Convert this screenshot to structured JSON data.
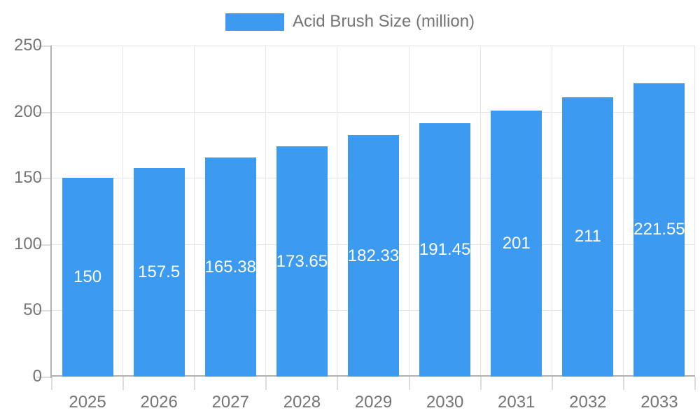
{
  "legend": {
    "label": "Acid Brush Size (million)"
  },
  "chart_data": {
    "type": "bar",
    "title": "",
    "categories": [
      "2025",
      "2026",
      "2027",
      "2028",
      "2029",
      "2030",
      "2031",
      "2032",
      "2033"
    ],
    "series": [
      {
        "name": "Acid Brush Size (million)",
        "values": [
          150,
          157.5,
          165.38,
          173.65,
          182.33,
          191.45,
          201,
          211,
          221.55
        ]
      }
    ],
    "value_labels": [
      "150",
      "157.5",
      "165.38",
      "173.65",
      "182.33",
      "191.45",
      "201",
      "211",
      "221.55"
    ],
    "xlabel": "",
    "ylabel": "",
    "ylim": [
      0,
      250
    ],
    "y_ticks": [
      0,
      50,
      100,
      150,
      200,
      250
    ],
    "grid": true,
    "legend_position": "top",
    "colors": {
      "bar": "#3C9AF0",
      "grid": "#e6e6e6",
      "axis": "#b1b1b1",
      "tick": "#dcdcdc",
      "text": "#757575",
      "value_label": "#ffffff"
    }
  }
}
